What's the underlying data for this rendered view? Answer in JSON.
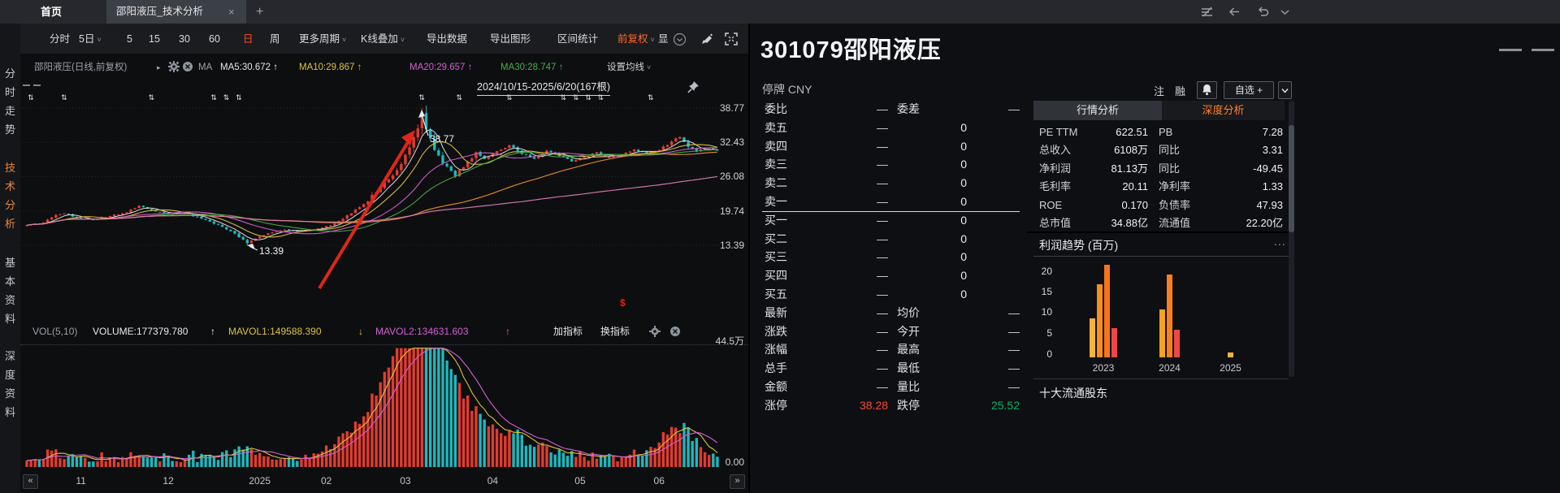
{
  "tab_bar": {
    "home": "首页",
    "active_tab": "邵阳液压_技术分析",
    "close": "×",
    "new_tab": "+"
  },
  "toolbar": {
    "items": [
      {
        "label": "分时"
      },
      {
        "label": "5日",
        "chevron": true
      },
      {
        "label": "5"
      },
      {
        "label": "15"
      },
      {
        "label": "30"
      },
      {
        "label": "60"
      },
      {
        "label": "日",
        "selected": true
      },
      {
        "label": "周"
      },
      {
        "label": "更多周期",
        "chevron": true
      },
      {
        "label": "K线叠加",
        "chevron": true
      },
      {
        "label": "导出数据"
      },
      {
        "label": "导出图形"
      },
      {
        "label": "区间统计"
      },
      {
        "label": "前复权",
        "accent": true,
        "chevron": true
      },
      {
        "label": "显"
      }
    ]
  },
  "sidebar": {
    "items": [
      {
        "label": "分时走势",
        "active": false
      },
      {
        "label": "技术分析",
        "active": true
      },
      {
        "label": "基本资料",
        "active": false
      },
      {
        "label": "深度资料",
        "active": false
      }
    ]
  },
  "legend": {
    "series_name": "邵阳液压(日线,前复权)",
    "indicator": "MA",
    "ma_items": [
      {
        "label": "MA5:30.672",
        "arrow": "↑",
        "color": "#e6e6e6"
      },
      {
        "label": "MA10:29.867",
        "arrow": "↑",
        "color": "#dcc33a"
      },
      {
        "label": "MA20:29.657",
        "arrow": "↑",
        "color": "#d45fd4"
      },
      {
        "label": "MA30:28.747",
        "arrow": "↑",
        "color": "#46ad46"
      }
    ],
    "ma_settings": "设置均线"
  },
  "chart": {
    "date_range": "2024/10/15-2025/6/20(167根)",
    "price_ticks": [
      "38.77",
      "32.43",
      "26.08",
      "19.74",
      "13.39"
    ],
    "peak_label": "38.77",
    "low_label": "13.39",
    "dollar_marker": "$",
    "scroll_left": "«",
    "scroll_right": "»"
  },
  "volume_pane": {
    "indicator": "VOL(5,10)",
    "volume": "VOLUME:177379.780",
    "volume_arrow": "↑",
    "mavol1": "MAVOL1:149588.390",
    "mavol1_arrow": "↓",
    "mavol2": "MAVOL2:134631.603",
    "mavol2_arrow": "↑",
    "add_indicator": "加指标",
    "switch_indicator": "换指标",
    "scale_top": "44.5万",
    "scale_bottom": "0.00"
  },
  "quote_panel": {
    "title": "301079邵阳液压",
    "status": "停牌 CNY",
    "ratio_row": {
      "l1": "委比",
      "v1": "—",
      "l2": "委差",
      "v2": "—"
    },
    "asks": [
      {
        "label": "卖五",
        "price": "—",
        "qty": "0"
      },
      {
        "label": "卖四",
        "price": "—",
        "qty": "0"
      },
      {
        "label": "卖三",
        "price": "—",
        "qty": "0"
      },
      {
        "label": "卖二",
        "price": "—",
        "qty": "0"
      },
      {
        "label": "卖一",
        "price": "—",
        "qty": "0"
      }
    ],
    "bids": [
      {
        "label": "买一",
        "price": "—",
        "qty": "0"
      },
      {
        "label": "买二",
        "price": "—",
        "qty": "0"
      },
      {
        "label": "买三",
        "price": "—",
        "qty": "0"
      },
      {
        "label": "买四",
        "price": "—",
        "qty": "0"
      },
      {
        "label": "买五",
        "price": "—",
        "qty": "0"
      }
    ],
    "stat_rows": [
      {
        "l1": "最新",
        "v1": "—",
        "l2": "均价",
        "v2": "—"
      },
      {
        "l1": "涨跌",
        "v1": "—",
        "l2": "今开",
        "v2": "—"
      },
      {
        "l1": "涨幅",
        "v1": "—",
        "l2": "最高",
        "v2": "—"
      },
      {
        "l1": "总手",
        "v1": "—",
        "l2": "最低",
        "v2": "—"
      },
      {
        "l1": "金额",
        "v1": "—",
        "l2": "量比",
        "v2": "—"
      }
    ],
    "limit_row": {
      "l1": "涨停",
      "v1": "38.28",
      "l2": "跌停",
      "v2": "25.52"
    }
  },
  "analysis_panel": {
    "badge_note": "注",
    "badge_margin": "融",
    "watchlist": "自选 +",
    "tabs": [
      {
        "label": "行情分析",
        "active": false
      },
      {
        "label": "深度分析",
        "active": true
      }
    ],
    "metrics": [
      {
        "l1": "PE TTM",
        "v1": "622.51",
        "l2": "PB",
        "v2": "7.28"
      },
      {
        "l1": "总收入",
        "v1": "6108万",
        "l2": "同比",
        "v2": "3.31"
      },
      {
        "l1": "净利润",
        "v1": "81.13万",
        "l2": "同比",
        "v2": "-49.45"
      },
      {
        "l1": "毛利率",
        "v1": "20.11",
        "l2": "净利率",
        "v2": "1.33"
      },
      {
        "l1": "ROE",
        "v1": "0.170",
        "l2": "负债率",
        "v2": "47.93"
      },
      {
        "l1": "总市值",
        "v1": "34.88亿",
        "l2": "流通值",
        "v2": "22.20亿"
      }
    ],
    "profit_title": "利润趋势 (百万)",
    "more": "...",
    "holders_title": "十大流通股东"
  },
  "chart_data": [
    {
      "type": "candlestick",
      "title": "邵阳液压 日线 前复权",
      "date_range": "2024/10/15-2025/6/20",
      "bar_count": 167,
      "y_ticks": [
        38.77,
        32.43,
        26.08,
        19.74,
        13.39
      ],
      "high": 38.77,
      "low": 13.39,
      "ma_values": {
        "MA5": 30.672,
        "MA10": 29.867,
        "MA20": 29.657,
        "MA30": 28.747
      },
      "x_tick_positions": [
        {
          "label": "11",
          "bar": 13
        },
        {
          "label": "12",
          "bar": 34
        },
        {
          "label": "2025",
          "bar": 56
        },
        {
          "label": "02",
          "bar": 72
        },
        {
          "label": "03",
          "bar": 91
        },
        {
          "label": "04",
          "bar": 112
        },
        {
          "label": "05",
          "bar": 133
        },
        {
          "label": "06",
          "bar": 152
        }
      ],
      "close_waypoints": [
        [
          0,
          17.1
        ],
        [
          4,
          17.6
        ],
        [
          7,
          19.0
        ],
        [
          9,
          19.3
        ],
        [
          12,
          18.4
        ],
        [
          16,
          18.1
        ],
        [
          20,
          18.8
        ],
        [
          24,
          19.5
        ],
        [
          27,
          20.7
        ],
        [
          30,
          19.8
        ],
        [
          34,
          19.2
        ],
        [
          38,
          19.4
        ],
        [
          42,
          18.3
        ],
        [
          46,
          17.2
        ],
        [
          49,
          16.0
        ],
        [
          51,
          14.9
        ],
        [
          53,
          13.8
        ],
        [
          55,
          14.6
        ],
        [
          58,
          15.6
        ],
        [
          62,
          16.3
        ],
        [
          66,
          16.0
        ],
        [
          70,
          16.5
        ],
        [
          74,
          17.4
        ],
        [
          78,
          19.3
        ],
        [
          81,
          21.0
        ],
        [
          84,
          23.2
        ],
        [
          87,
          25.6
        ],
        [
          90,
          28.4
        ],
        [
          92,
          31.5
        ],
        [
          94,
          35.0
        ],
        [
          95,
          37.8
        ],
        [
          96,
          34.8
        ],
        [
          98,
          31.0
        ],
        [
          100,
          28.5
        ],
        [
          103,
          26.2
        ],
        [
          106,
          28.8
        ],
        [
          108,
          30.6
        ],
        [
          110,
          29.4
        ],
        [
          113,
          30.8
        ],
        [
          116,
          31.9
        ],
        [
          119,
          30.3
        ],
        [
          122,
          29.4
        ],
        [
          125,
          30.9
        ],
        [
          128,
          29.9
        ],
        [
          131,
          28.9
        ],
        [
          134,
          29.8
        ],
        [
          137,
          30.6
        ],
        [
          140,
          29.6
        ],
        [
          143,
          30.2
        ],
        [
          146,
          31.1
        ],
        [
          149,
          30.4
        ],
        [
          152,
          31.0
        ],
        [
          155,
          32.6
        ],
        [
          157,
          33.4
        ],
        [
          159,
          31.6
        ],
        [
          161,
          30.7
        ],
        [
          163,
          31.3
        ],
        [
          166,
          30.9
        ]
      ],
      "volume": {
        "current": 177379.78,
        "mavol1": 149588.39,
        "mavol2": 134631.603,
        "scale_top_wan": 44.5
      }
    },
    {
      "type": "bar",
      "title": "利润趋势 (百万)",
      "ylim": [
        0,
        20
      ],
      "yticks": [
        20,
        15,
        10,
        5,
        0
      ],
      "groups": [
        {
          "label": "2023",
          "values": [
            9.0,
            17.0,
            21.5,
            6.7
          ],
          "colors": [
            "#f9b234",
            "#f78e1e",
            "#f7741e",
            "#ef4747"
          ]
        },
        {
          "label": "2024",
          "values": [
            11.1,
            19.2,
            6.4
          ],
          "colors": [
            "#f9a01e",
            "#f7801e",
            "#ef4747"
          ]
        },
        {
          "label": "2025",
          "values": [
            1.2
          ],
          "colors": [
            "#f9b234"
          ]
        }
      ]
    }
  ]
}
